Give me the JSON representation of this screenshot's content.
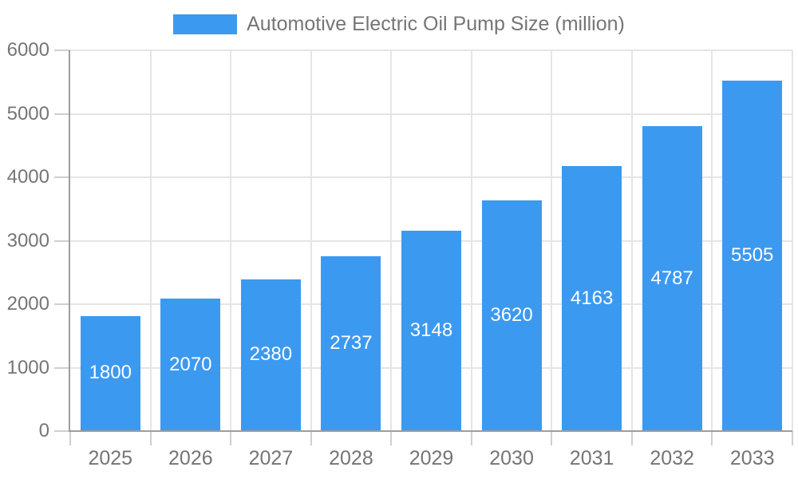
{
  "legend": {
    "label": "Automotive Electric Oil Pump Size (million)"
  },
  "chart_data": {
    "type": "bar",
    "title": "",
    "xlabel": "",
    "ylabel": "",
    "categories": [
      "2025",
      "2026",
      "2027",
      "2028",
      "2029",
      "2030",
      "2031",
      "2032",
      "2033"
    ],
    "series": [
      {
        "name": "Automotive Electric Oil Pump Size (million)",
        "values": [
          1800,
          2070,
          2380,
          2737,
          3148,
          3620,
          4163,
          4787,
          5505
        ]
      }
    ],
    "value_labels_position": "inside-center",
    "ylim": [
      0,
      6000
    ],
    "ytick_step": 1000,
    "yticks": [
      0,
      1000,
      2000,
      3000,
      4000,
      5000,
      6000
    ],
    "grid": true,
    "legend_position": "top-center"
  },
  "colors": {
    "bar": "#3c99f0",
    "axis_label": "#757575",
    "legend_label": "#757575",
    "grid": "#e5e5e5",
    "axis_line": "#9e9e9e",
    "tick": "#cfcfcf",
    "value_label": "#ffffff",
    "background": "#ffffff"
  }
}
